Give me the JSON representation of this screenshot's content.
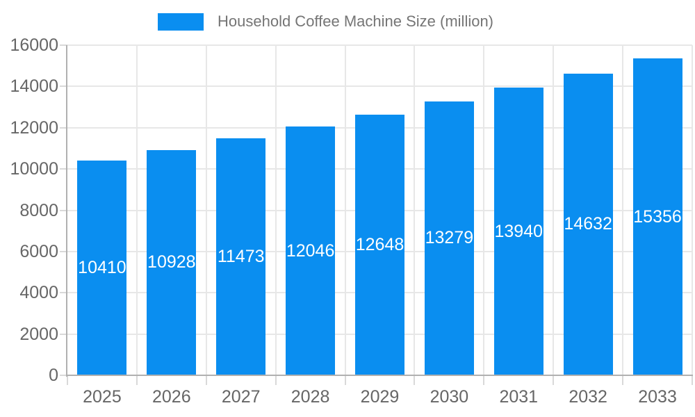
{
  "legend": {
    "label": "Household Coffee Machine Size (million)",
    "swatch_color": "#0a8ef0"
  },
  "colors": {
    "bar": "#0a8ef0",
    "bar_label": "#ffffff",
    "grid": "#e7e7e7",
    "tick": "#d9d9d9",
    "axis_line": "#b0b0b0",
    "axis_label": "#666666",
    "legend_text": "#757575",
    "background": "#ffffff"
  },
  "chart_data": {
    "type": "bar",
    "title": "",
    "categories": [
      "2025",
      "2026",
      "2027",
      "2028",
      "2029",
      "2030",
      "2031",
      "2032",
      "2033"
    ],
    "series": [
      {
        "name": "Household Coffee Machine Size (million)",
        "values": [
          10410,
          10928,
          11473,
          12046,
          12648,
          13279,
          13940,
          14632,
          15356
        ]
      }
    ],
    "xlabel": "",
    "ylabel": "",
    "ylim": [
      0,
      16000
    ],
    "ytick_step": 2000,
    "yticks": [
      0,
      2000,
      4000,
      6000,
      8000,
      10000,
      12000,
      14000,
      16000
    ],
    "grid": true,
    "legend_position": "top",
    "bar_value_labels": true
  }
}
